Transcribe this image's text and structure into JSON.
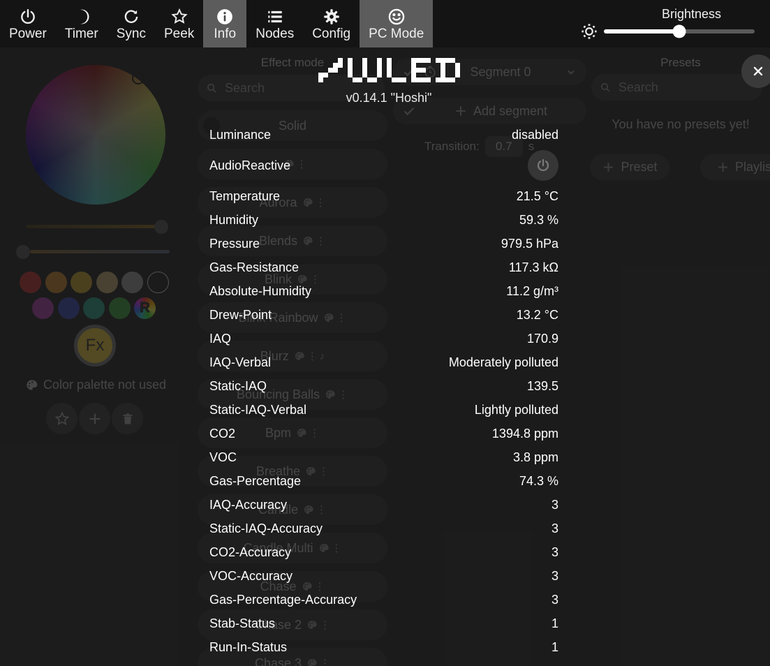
{
  "toolbar": {
    "buttons": [
      {
        "label": "Power",
        "icon": "power-icon",
        "active": false
      },
      {
        "label": "Timer",
        "icon": "moon-icon",
        "active": false
      },
      {
        "label": "Sync",
        "icon": "sync-icon",
        "active": false
      },
      {
        "label": "Peek",
        "icon": "star-icon",
        "active": false
      },
      {
        "label": "Info",
        "icon": "info-icon",
        "active": true
      },
      {
        "label": "Nodes",
        "icon": "nodes-icon",
        "active": false
      },
      {
        "label": "Config",
        "icon": "gear-icon",
        "active": false
      },
      {
        "label": "PC Mode",
        "icon": "smiley-icon",
        "active": true
      }
    ],
    "brightness_label": "Brightness",
    "brightness_percent": 50
  },
  "info": {
    "logo_alt": "WLED",
    "version": "v0.14.1 \"Hoshi\"",
    "rows": [
      {
        "name": "Luminance",
        "value": "disabled"
      },
      {
        "name": "AudioReactive",
        "value": "",
        "toggle": true
      },
      {
        "name": "Temperature",
        "value": "21.5 °C"
      },
      {
        "name": "Humidity",
        "value": "59.3 %"
      },
      {
        "name": "Pressure",
        "value": "979.5 hPa"
      },
      {
        "name": "Gas-Resistance",
        "value": "117.3 kΩ"
      },
      {
        "name": "Absolute-Humidity",
        "value": "11.2 g/m³"
      },
      {
        "name": "Drew-Point",
        "value": "13.2 °C"
      },
      {
        "name": "IAQ",
        "value": "170.9"
      },
      {
        "name": "IAQ-Verbal",
        "value": "Moderately polluted"
      },
      {
        "name": "Static-IAQ",
        "value": "139.5"
      },
      {
        "name": "Static-IAQ-Verbal",
        "value": "Lightly polluted"
      },
      {
        "name": "CO2",
        "value": "1394.8 ppm"
      },
      {
        "name": "VOC",
        "value": "3.8 ppm"
      },
      {
        "name": "Gas-Percentage",
        "value": "74.3 %"
      },
      {
        "name": "IAQ-Accuracy",
        "value": "3"
      },
      {
        "name": "Static-IAQ-Accuracy",
        "value": "3"
      },
      {
        "name": "CO2-Accuracy",
        "value": "3"
      },
      {
        "name": "VOC-Accuracy",
        "value": "3"
      },
      {
        "name": "Gas-Percentage-Accuracy",
        "value": "3"
      },
      {
        "name": "Stab-Status",
        "value": "1"
      },
      {
        "name": "Run-In-Status",
        "value": "1"
      }
    ]
  },
  "effects": {
    "title": "Effect mode",
    "search_placeholder": "Search",
    "items": [
      {
        "label": "Solid",
        "selected": true,
        "icons": false
      },
      {
        "label": "",
        "selected": false,
        "icons": true
      },
      {
        "label": "Aurora",
        "selected": false,
        "icons": true
      },
      {
        "label": "Blends",
        "selected": false,
        "icons": true
      },
      {
        "label": "Blink",
        "selected": false,
        "icons": true
      },
      {
        "label": "Blink Rainbow",
        "selected": false,
        "icons": true
      },
      {
        "label": "Blurz",
        "selected": false,
        "icons": true,
        "music": true
      },
      {
        "label": "Bouncing Balls",
        "selected": false,
        "icons": true
      },
      {
        "label": "Bpm",
        "selected": false,
        "icons": true
      },
      {
        "label": "Breathe",
        "selected": false,
        "icons": true
      },
      {
        "label": "Candle",
        "selected": false,
        "icons": true
      },
      {
        "label": "Candle Multi",
        "selected": false,
        "icons": true
      },
      {
        "label": "Chase",
        "selected": false,
        "icons": true
      },
      {
        "label": "Chase 2",
        "selected": false,
        "icons": true
      },
      {
        "label": "Chase 3",
        "selected": false,
        "icons": true
      }
    ]
  },
  "segment": {
    "name": "Segment 0",
    "add_label": "Add segment",
    "transition_label": "Transition:",
    "transition_value": "0.7",
    "transition_unit": "s"
  },
  "presets": {
    "title": "Presets",
    "search_placeholder": "Search",
    "empty_message": "You have no presets yet!",
    "add_preset_label": "Preset",
    "add_playlist_label": "Playlist"
  },
  "left_panel": {
    "fx_label": "Fx",
    "palette_note": "Color palette not used",
    "rainbow_label": "R",
    "swatches_row1": [
      "#c03030",
      "#c8852c",
      "#c8a52c",
      "#c4ab74",
      "#9c9c9c",
      "outline"
    ],
    "swatches_row2": [
      "#ad3dad",
      "#3c49b8",
      "#2aa186",
      "#3da23d",
      "rainbow"
    ]
  },
  "colors": {
    "toolbar_bg": "#141414",
    "toolbar_active_bg": "#5c5c5c",
    "panel_bg": "#222222",
    "pill_bg": "#333333",
    "fx_button_fill": "#e8c53a",
    "info_text": "#ffffff"
  }
}
